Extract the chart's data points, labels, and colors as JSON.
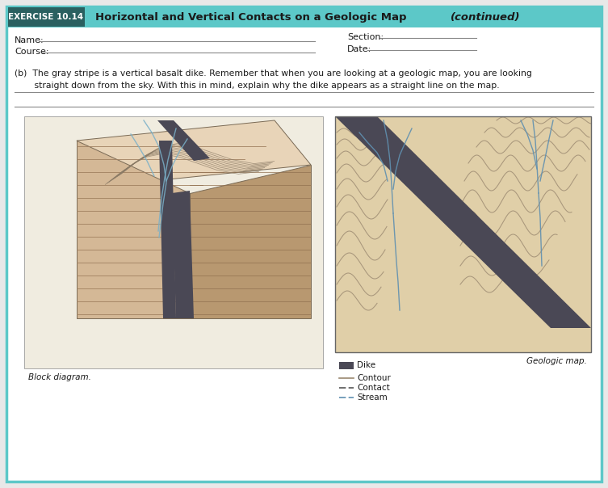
{
  "exercise_label": "EXERCISE 10.14",
  "title_text_regular": "Horizontal and Vertical Contacts on a Geologic Map ",
  "title_text_italic": "(continued)",
  "name_label": "Name:",
  "course_label": "Course:",
  "section_label": "Section:",
  "date_label": "Date:",
  "question_b": "(b)  The gray stripe is a vertical basalt dike. Remember that when you are looking at a geologic map, you are looking\n       straight down from the sky. With this in mind, explain why the dike appears as a straight line on the map.",
  "block_diagram_label": "Block diagram.",
  "geologic_map_label": "Geologic map.",
  "page_bg": "#e8e8e8",
  "header_bg": "#5cc8c8",
  "exercise_bg": "#2a6060",
  "answer_line_color": "#888888",
  "body_bg": "#ffffff",
  "sandy": "#d4b896",
  "sandy_light": "#e8d4b8",
  "sandy_dark": "#b89870",
  "dark_gray": "#4a4855",
  "blue_stream": "#7ab0c8",
  "contour_color": "#9a8870",
  "stream_color": "#6090b0",
  "dike_legend_color": "#4a4855"
}
